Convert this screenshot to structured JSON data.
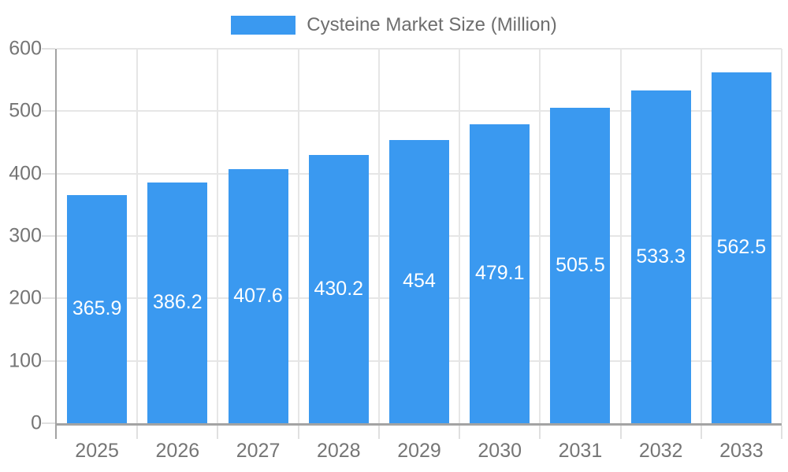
{
  "chart_data": {
    "type": "bar",
    "title": "Cysteine Market Size (Million)",
    "categories": [
      "2025",
      "2026",
      "2027",
      "2028",
      "2029",
      "2030",
      "2031",
      "2032",
      "2033"
    ],
    "values": [
      365.9,
      386.2,
      407.6,
      430.2,
      454,
      479.1,
      505.5,
      533.3,
      562.5
    ],
    "series": [
      {
        "name": "Cysteine Market Size (Million)",
        "values": [
          365.9,
          386.2,
          407.6,
          430.2,
          454,
          479.1,
          505.5,
          533.3,
          562.5
        ]
      }
    ],
    "xlabel": "",
    "ylabel": "",
    "ylim": [
      0,
      600
    ],
    "yticks": [
      0,
      100,
      200,
      300,
      400,
      500,
      600
    ],
    "grid": true,
    "legend_position": "top",
    "bar_labels_inside": true,
    "colors": {
      "bar": "#3a99f0",
      "bar_label": "#ffffff",
      "grid": "#e6e6e6",
      "axis": "#a3a3a3",
      "tick": "#e0e0e0",
      "label": "#757575",
      "legend_text": "#6e6e6e",
      "background": "#ffffff"
    }
  }
}
